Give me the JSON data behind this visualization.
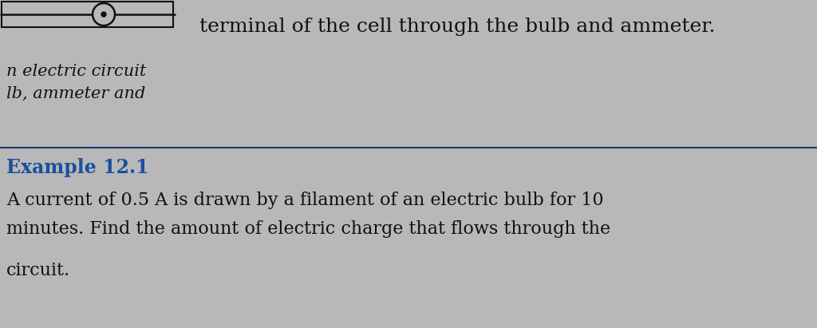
{
  "bg_color": "#b8b8b8",
  "top_right_text": "terminal of the cell through the bulb and ammeter.",
  "italic_line1": "n electric circuit",
  "italic_line2": "lb, ammeter and",
  "divider_color": "#1a3a6b",
  "example_title": "Example 12.1",
  "example_title_color": "#1a4fa0",
  "body_line1": "A current of 0.5 A is drawn by a filament of an electric bulb for 10",
  "body_line2": "minutes. Find the amount of electric charge that flows through the",
  "body_line3": "circuit.",
  "font_size_top": 18,
  "font_size_italic": 15,
  "font_size_example": 17,
  "font_size_body": 16,
  "text_color": "#111111"
}
